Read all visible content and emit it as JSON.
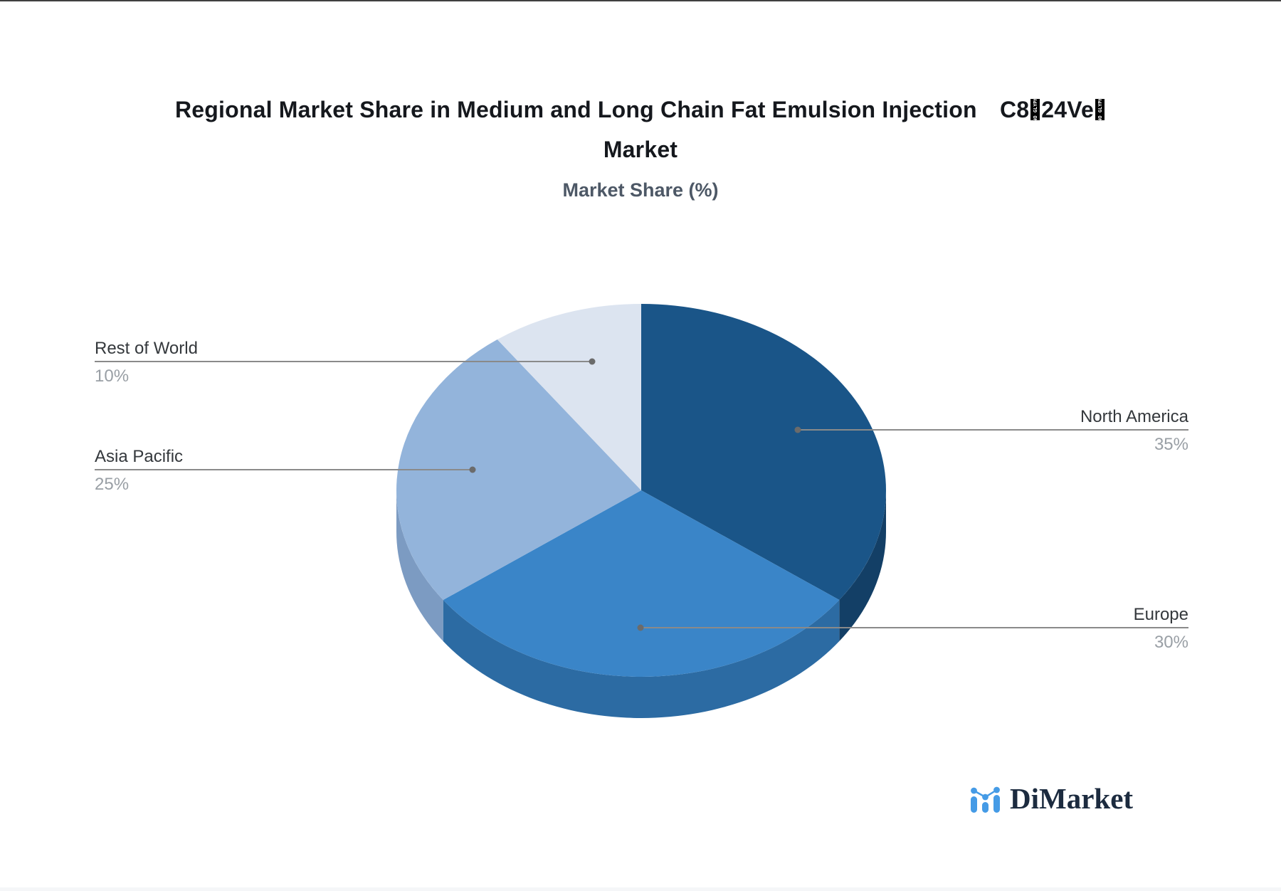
{
  "title": {
    "line1_pre": "Regional Market Share in Medium and Long Chain Fat Emulsion Injection　C8",
    "line1_mid": "24Ve",
    "no_glyph": "NO GLYPH",
    "line2": "Market",
    "subtitle": "Market Share (%)"
  },
  "chart_data": {
    "type": "pie",
    "style": "3d",
    "title": "Market Share (%)",
    "unit": "%",
    "start_angle_deg": 0,
    "direction": "clockwise",
    "legend_position": "callout-labels",
    "segments": [
      {
        "label": "North America",
        "value": 35,
        "pct_label": "35%",
        "color": "#1A5588",
        "side_color": "#133F66",
        "label_side": "right"
      },
      {
        "label": "Europe",
        "value": 30,
        "pct_label": "30%",
        "color": "#3A85C8",
        "side_color": "#2C6BA3",
        "label_side": "right"
      },
      {
        "label": "Asia Pacific",
        "value": 25,
        "pct_label": "25%",
        "color": "#93B4DB",
        "side_color": "#7C9BC2",
        "label_side": "left"
      },
      {
        "label": "Rest of World",
        "value": 10,
        "pct_label": "10%",
        "color": "#DCE4F0",
        "side_color": "#B8C5D8",
        "label_side": "left"
      }
    ],
    "leader_line_color": "#8a8a8a",
    "leader_dot_color": "#6b6b6b"
  },
  "logo": {
    "text": "DiMarket",
    "icon": "bar-line-chart-icon",
    "icon_color": "#459BE6",
    "text_color": "#1c2b3f"
  }
}
